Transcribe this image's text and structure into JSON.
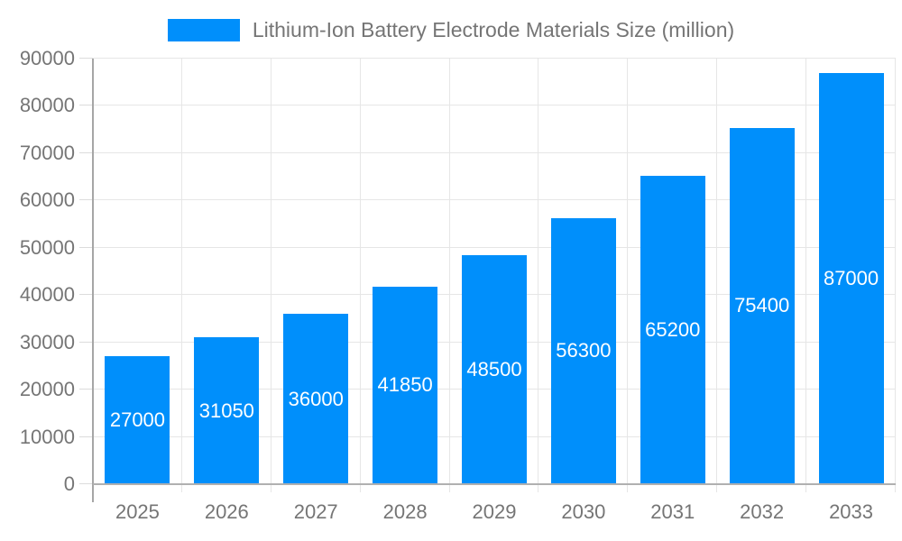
{
  "legend": {
    "label": "Lithium-Ion Battery Electrode Materials Size (million)"
  },
  "chart_data": {
    "type": "bar",
    "title": "Lithium-Ion Battery Electrode Materials Size (million)",
    "categories": [
      "2025",
      "2026",
      "2027",
      "2028",
      "2029",
      "2030",
      "2031",
      "2032",
      "2033"
    ],
    "values": [
      27000,
      31050,
      36000,
      41850,
      48500,
      56300,
      65200,
      75400,
      87000
    ],
    "xlabel": "",
    "ylabel": "",
    "ylim": [
      0,
      90000
    ],
    "ytick_step": 10000,
    "yticks": [
      0,
      10000,
      20000,
      30000,
      40000,
      50000,
      60000,
      70000,
      80000,
      90000
    ],
    "grid": true,
    "legend_position": "top",
    "bar_labels_visible": true,
    "colors": {
      "bar": "#008FFB",
      "bar_label_text": "#FFFFFF",
      "axis_text": "#757575",
      "grid_line": "#E6E6E6",
      "axis_line": "#A6A6A6",
      "background": "#FFFFFF"
    }
  }
}
